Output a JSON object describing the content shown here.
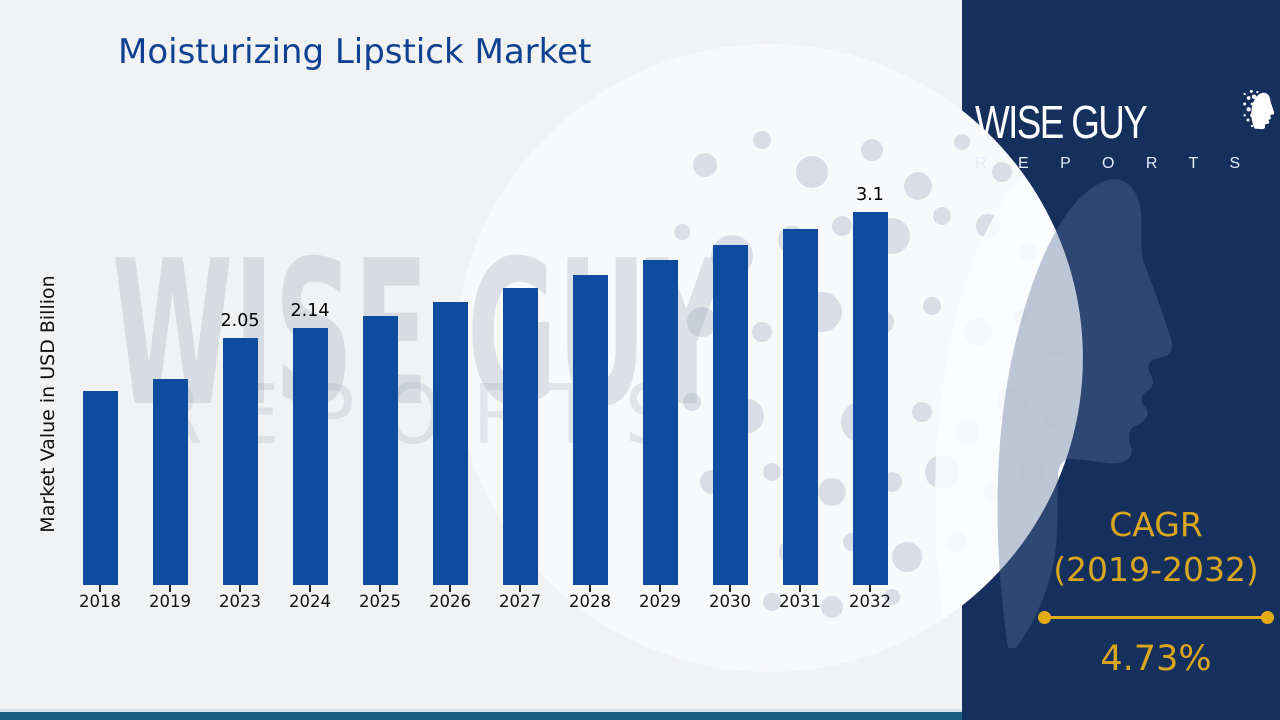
{
  "page": {
    "title": "Moisturizing Lipstick Market"
  },
  "chart_data": {
    "type": "bar",
    "title": "Moisturizing Lipstick Market",
    "xlabel": "",
    "ylabel": "Market Value in USD Billion",
    "categories": [
      "2018",
      "2019",
      "2023",
      "2024",
      "2025",
      "2026",
      "2027",
      "2028",
      "2029",
      "2030",
      "2031",
      "2032"
    ],
    "values": [
      1.61,
      1.71,
      2.05,
      2.14,
      2.24,
      2.35,
      2.47,
      2.58,
      2.7,
      2.83,
      2.96,
      3.1
    ],
    "bar_labels": {
      "2023": "2.05",
      "2024": "2.14",
      "2032": "3.1"
    },
    "ylim": [
      0,
      3.3
    ],
    "grid": false,
    "legend": "none",
    "bar_color": "#0d4c9e"
  },
  "watermark": {
    "line1": "WISE GUY",
    "line2": "REPORTS"
  },
  "sidebar": {
    "logo": {
      "line1": "WISE GUY",
      "line2": "R E P O R T S"
    },
    "cagr": {
      "heading": "CAGR",
      "range": "(2019-2032)",
      "value": "4.73%"
    }
  },
  "colors": {
    "background": "#f1f2f3",
    "bar": "#0d4c9e",
    "title_text": "#0e4191",
    "sidebar_navy": "#16305e",
    "gold_accent": "#d9a61e",
    "footer_teal": "#1b5f80"
  }
}
